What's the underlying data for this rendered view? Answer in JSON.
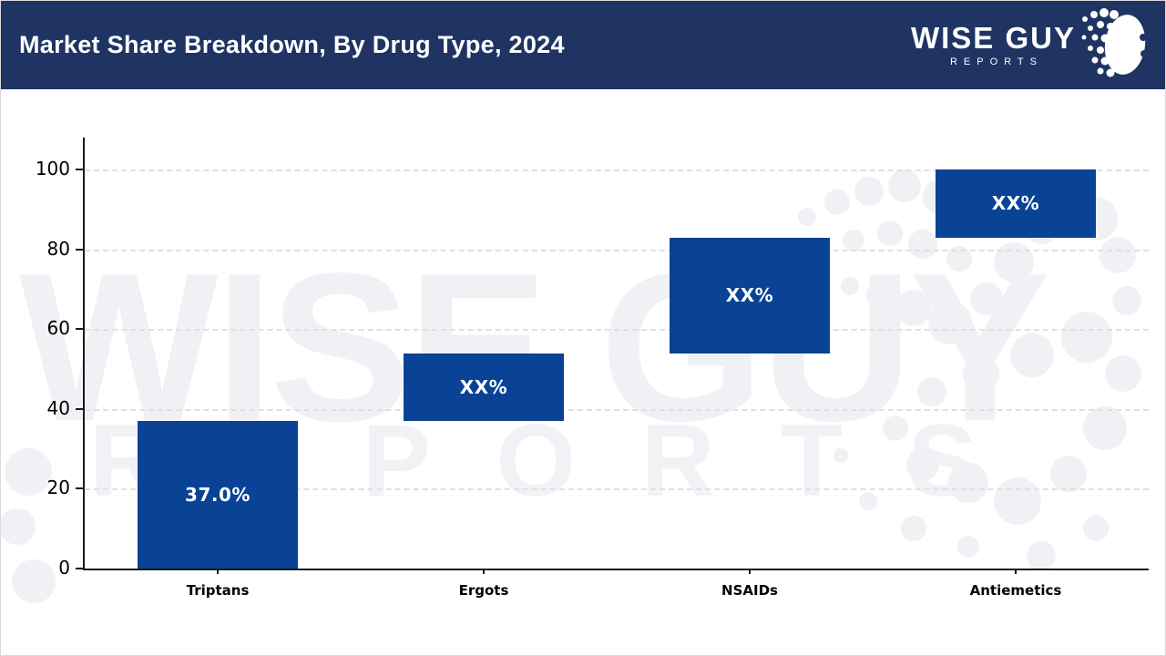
{
  "header": {
    "title": "Market Share Breakdown, By Drug Type, 2024",
    "logo_line1": "WISE GUY",
    "logo_line2": "REPORTS"
  },
  "watermark": {
    "line1": "WISE GUY",
    "line2": "REPORTS"
  },
  "chart_data": {
    "type": "bar",
    "subtype": "waterfall",
    "title": "Market Share Breakdown, By Drug Type, 2024",
    "categories": [
      "Triptans",
      "Ergots",
      "NSAIDs",
      "Antiemetics"
    ],
    "segments": [
      {
        "category": "Triptans",
        "start": 0,
        "end": 37,
        "label": "37.0%"
      },
      {
        "category": "Ergots",
        "start": 37,
        "end": 54,
        "label": "XX%"
      },
      {
        "category": "NSAIDs",
        "start": 54,
        "end": 83,
        "label": "XX%"
      },
      {
        "category": "Antiemetics",
        "start": 83,
        "end": 100,
        "label": "XX%"
      }
    ],
    "yticks": [
      0,
      20,
      40,
      60,
      80,
      100
    ],
    "ylim": [
      0,
      108
    ],
    "xlabel": "",
    "ylabel": "",
    "grid": "horizontal-dashed",
    "legend": "none",
    "bar_color": "#0a4296",
    "bar_label_color": "#ffffff"
  },
  "colors": {
    "header_bg": "#1f3463",
    "bar": "#0a4296",
    "grid": "#e0e0e2",
    "axis": "#1a1a1a",
    "watermark": "#f0f1f4",
    "page_border": "#d9d9d9"
  }
}
